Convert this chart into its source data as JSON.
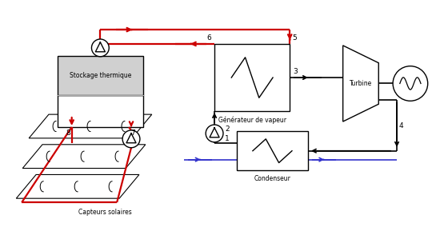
{
  "background_color": "#ffffff",
  "red": "#cc0000",
  "black": "#000000",
  "blue": "#3333cc",
  "gray_light": "#d0d0d0",
  "labels": {
    "stockage": "Stockage thermique",
    "generateur": "Générateur de vapeur",
    "turbine": "Turbine",
    "condenseur": "Condenseur",
    "capteurs": "Capteurs solaires"
  },
  "figsize": [
    5.55,
    3.14
  ],
  "dpi": 100
}
